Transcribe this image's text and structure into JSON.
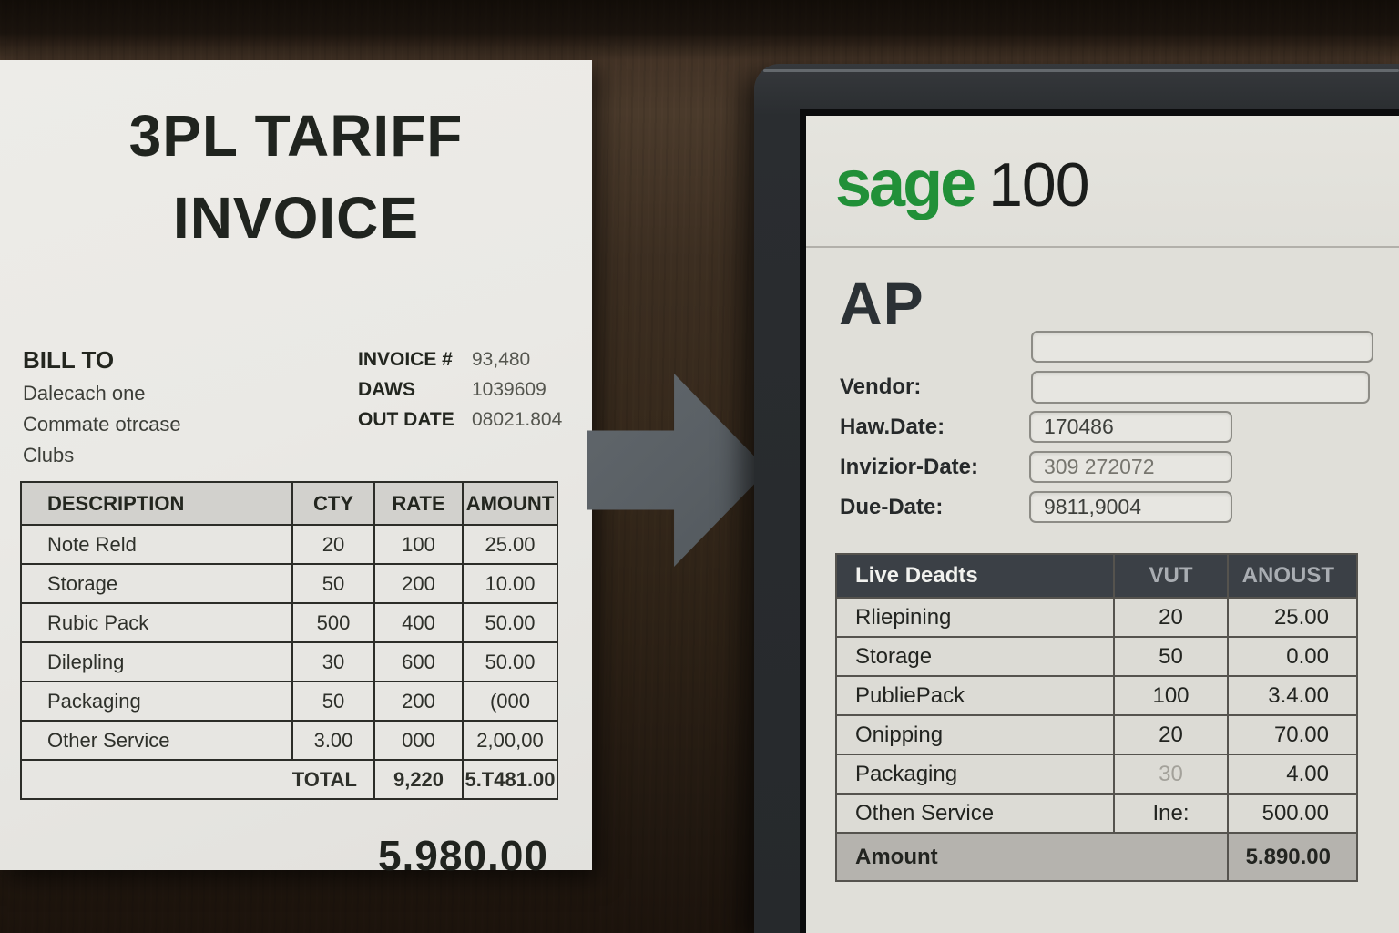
{
  "left_document": {
    "title_line1": "3PL TARIFF",
    "title_line2": "INVOICE",
    "bill_to_label": "BILL TO",
    "bill_to_lines": [
      "Dalecach one",
      "Commate otrcase",
      "Clubs"
    ],
    "meta": [
      {
        "label": "INVOICE #",
        "value": "93,480"
      },
      {
        "label": "DAWS",
        "value": "1039609"
      },
      {
        "label": "OUT DATE",
        "value": "08021.804"
      }
    ],
    "table": {
      "headers": [
        "DESCRIPTION",
        "CTY",
        "RATE",
        "AMOUNT"
      ],
      "rows": [
        {
          "description": "Note Reld",
          "cty": "20",
          "rate": "100",
          "amount": "25.00"
        },
        {
          "description": "Storage",
          "cty": "50",
          "rate": "200",
          "amount": "10.00"
        },
        {
          "description": "Rubic Pack",
          "cty": "500",
          "rate": "400",
          "amount": "50.00"
        },
        {
          "description": "Dilepling",
          "cty": "30",
          "rate": "600",
          "amount": "50.00"
        },
        {
          "description": "Packaging",
          "cty": "50",
          "rate": "200",
          "amount": "(000"
        },
        {
          "description": "Other Service",
          "cty": "3.00",
          "rate": "000",
          "amount": "2,00,00"
        }
      ],
      "total_label": "TOTAL",
      "total_cty": "9,220",
      "total_amount": "5.T481.00"
    },
    "grand_total": "5.980.00"
  },
  "sage_app": {
    "logo_text": "sage",
    "logo_suffix": "100",
    "module_title": "AP",
    "fields": {
      "top_value": "",
      "vendor_label": "Vendor:",
      "vendor_value": "",
      "haw_date_label": "Haw.Date:",
      "haw_date_value": "170486",
      "invizior_date_label": "Invizior-Date:",
      "invizior_date_value": "309 272072",
      "due_date_label": "Due-Date:",
      "due_date_value": "9811,9004"
    },
    "table": {
      "headers": [
        "Live Deadts",
        "VUT",
        "ANOUST"
      ],
      "rows": [
        {
          "description": "Rliepining",
          "vut": "20",
          "amount": "25.00"
        },
        {
          "description": "Storage",
          "vut": "50",
          "amount": "0.00"
        },
        {
          "description": "PubliePack",
          "vut": "100",
          "amount": "3.4.00"
        },
        {
          "description": "Onipping",
          "vut": "20",
          "amount": "70.00"
        },
        {
          "description": "Packaging",
          "vut": "30",
          "amount": "4.00"
        },
        {
          "description": "Othen Service",
          "vut": "Ine:",
          "amount": "500.00"
        }
      ],
      "total_label": "Amount",
      "total_value": "5.890.00"
    }
  },
  "colors": {
    "sage_green": "#219038",
    "grid_header_dark": "#3b4046",
    "paper": "#eae9e5",
    "screen": "#e0dfd9",
    "arrow_gray": "#595f64",
    "wood_dark": "#35281b"
  }
}
